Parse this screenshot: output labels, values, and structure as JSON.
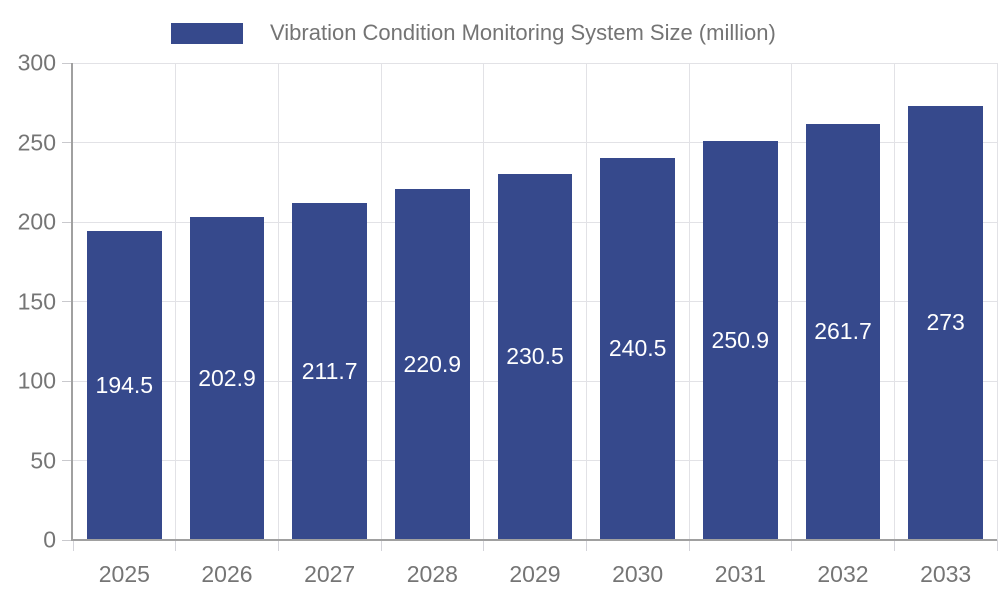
{
  "legend": {
    "label": "Vibration Condition Monitoring System Size (million)"
  },
  "chart_data": {
    "type": "bar",
    "title": "Vibration Condition Monitoring System Size (million)",
    "series_name": "Vibration Condition Monitoring System Size (million)",
    "categories": [
      "2025",
      "2026",
      "2027",
      "2028",
      "2029",
      "2030",
      "2031",
      "2032",
      "2033"
    ],
    "values": [
      194.5,
      202.9,
      211.7,
      220.9,
      230.5,
      240.5,
      250.9,
      261.7,
      273
    ],
    "xlabel": "",
    "ylabel": "",
    "ylim": [
      0,
      300
    ],
    "yticks": [
      0,
      50,
      100,
      150,
      200,
      250,
      300
    ],
    "grid": true,
    "legend_position": "top",
    "value_labels": "inside-center",
    "colors": {
      "bar": "#36498c",
      "bar_label": "#ffffff",
      "axis_line": "#a0a0a0",
      "gridline": "#e2e2e6",
      "tick_label": "#757575",
      "legend_text": "#747474",
      "background": "#ffffff"
    }
  }
}
